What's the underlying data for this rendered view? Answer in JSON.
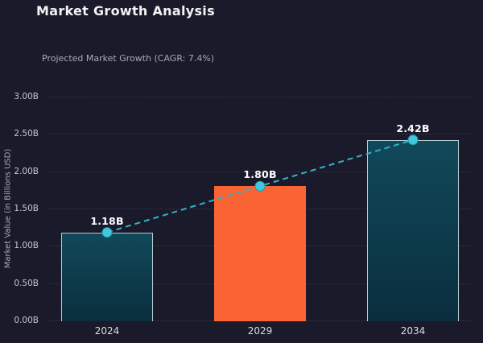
{
  "page": {
    "background_color": "#1b1a2b"
  },
  "chart_data": {
    "type": "bar",
    "title": "Market Growth Analysis",
    "subtitle": "Projected Market Growth (CAGR: 7.4%)",
    "xlabel": "",
    "ylabel": "Market Value (in Billions USD)",
    "categories": [
      "2024",
      "2029",
      "2034"
    ],
    "values": [
      1.18,
      1.8,
      2.42
    ],
    "value_labels": [
      "1.18B",
      "1.80B",
      "2.42B"
    ],
    "ylim": [
      0,
      3
    ],
    "ytick_step": 0.5,
    "ytick_labels": [
      "0.00B",
      "0.50B",
      "1.00B",
      "1.50B",
      "2.00B",
      "2.50B",
      "3.00B"
    ],
    "grid": "horizontal dashed, faint",
    "legend": "none",
    "overlay": "dashed cyan trend line with circular markers connecting bar tops",
    "bar_styles": [
      "teal",
      "orange",
      "teal"
    ],
    "colors": {
      "background": "#1b1a2b",
      "bar_teal_top": "#11495a",
      "bar_teal_bottom": "#0a2e3d",
      "bar_teal_edge": "#d3e7ed",
      "bar_orange": "#fa6434",
      "trend_line": "#2fb3c9",
      "marker_fill": "#3fc8de",
      "marker_edge": "#2596ab",
      "title_text": "#f3f3f6",
      "subtitle_text": "#a9a9b4",
      "tick_text": "#c6c7d0",
      "xtick_text": "#dcdde2",
      "value_label_text": "#ffffff"
    }
  }
}
